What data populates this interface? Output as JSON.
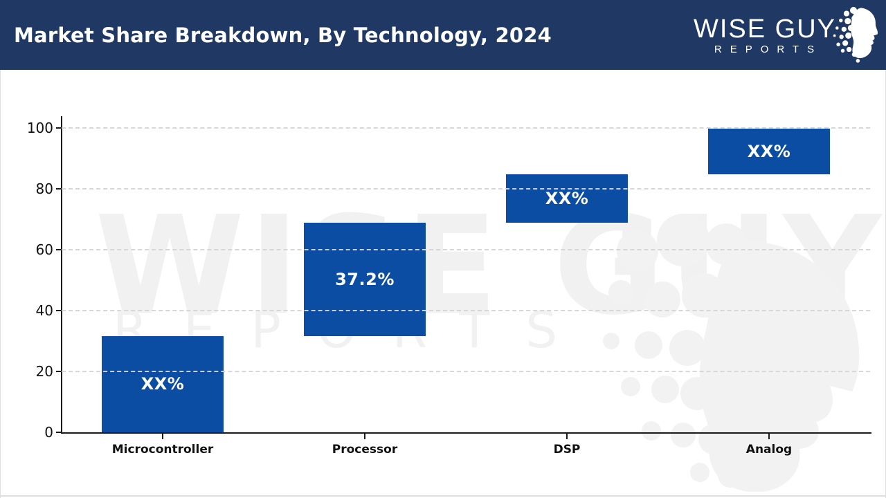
{
  "header": {
    "title": "Market Share Breakdown, By Technology, 2024",
    "logo": {
      "line1": "WISE GUY",
      "line2": "REPORTS"
    }
  },
  "watermark": {
    "line1": "WISE GUY",
    "line2": "REPORTS"
  },
  "chart_data": {
    "type": "bar",
    "subtype": "waterfall",
    "title": "Market Share Breakdown, By Technology, 2024",
    "categories": [
      "Microcontroller",
      "Processor",
      "DSP",
      "Analog"
    ],
    "bars": [
      {
        "category": "Microcontroller",
        "start": 0,
        "value": 31.6,
        "label": "XX%"
      },
      {
        "category": "Processor",
        "start": 31.6,
        "value": 37.2,
        "label": "37.2%"
      },
      {
        "category": "DSP",
        "start": 68.8,
        "value": 16.0,
        "label": "XX%"
      },
      {
        "category": "Analog",
        "start": 84.8,
        "value": 15.0,
        "label": "XX%"
      }
    ],
    "xlabel": "",
    "ylabel": "",
    "ylim": [
      0,
      100
    ],
    "yticks": [
      0,
      20,
      40,
      60,
      80,
      100
    ],
    "grid": "horizontal-dashed",
    "legend": "none"
  },
  "colors": {
    "header_navy": "#1F3864",
    "bar_blue": "#0B4DA2",
    "watermark_gray": "#F1F1F2",
    "grid_gray": "#D5D5D5"
  }
}
